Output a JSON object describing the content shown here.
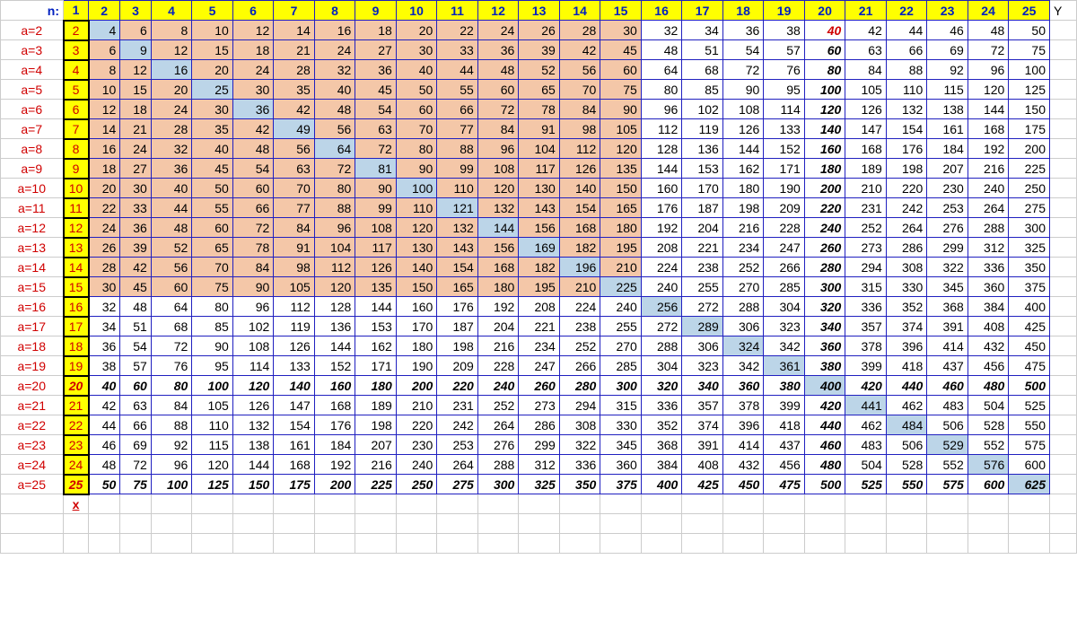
{
  "header": {
    "n_label": "n:",
    "y_label": "Y",
    "cols": [
      1,
      2,
      3,
      4,
      5,
      6,
      7,
      8,
      9,
      10,
      11,
      12,
      13,
      14,
      15,
      16,
      17,
      18,
      19,
      20,
      21,
      22,
      23,
      24,
      25
    ]
  },
  "footer": {
    "x_label": "x"
  },
  "colors": {
    "header_bg": "#ffff00",
    "header_fg": "#0020c0",
    "row_label_fg": "#d00000",
    "cell_border": "#2020c0",
    "tan_bg": "#f4c7a8",
    "blue_bg": "#bcd5e8",
    "first_col_border": "#000000"
  },
  "shaded_rows_tan": 14,
  "rows": [
    {
      "a": 2,
      "label": "a=2",
      "highlight_col": 20,
      "highlight_style": "red"
    },
    {
      "a": 3,
      "label": "a=3"
    },
    {
      "a": 4,
      "label": "a=4"
    },
    {
      "a": 5,
      "label": "a=5"
    },
    {
      "a": 6,
      "label": "a=6"
    },
    {
      "a": 7,
      "label": "a=7"
    },
    {
      "a": 8,
      "label": "a=8"
    },
    {
      "a": 9,
      "label": "a=9"
    },
    {
      "a": 10,
      "label": "a=10"
    },
    {
      "a": 11,
      "label": "a=11"
    },
    {
      "a": 12,
      "label": "a=12"
    },
    {
      "a": 13,
      "label": "a=13"
    },
    {
      "a": 14,
      "label": "a=14"
    },
    {
      "a": 15,
      "label": "a=15"
    },
    {
      "a": 16,
      "label": "a=16"
    },
    {
      "a": 17,
      "label": "a=17"
    },
    {
      "a": 18,
      "label": "a=18"
    },
    {
      "a": 19,
      "label": "a=19"
    },
    {
      "a": 20,
      "label": "a=20",
      "bold_row": true
    },
    {
      "a": 21,
      "label": "a=21"
    },
    {
      "a": 22,
      "label": "a=22"
    },
    {
      "a": 23,
      "label": "a=23"
    },
    {
      "a": 24,
      "label": "a=24"
    },
    {
      "a": 25,
      "label": "a=25",
      "bold_row": true
    }
  ],
  "bold_italic_col": 20
}
